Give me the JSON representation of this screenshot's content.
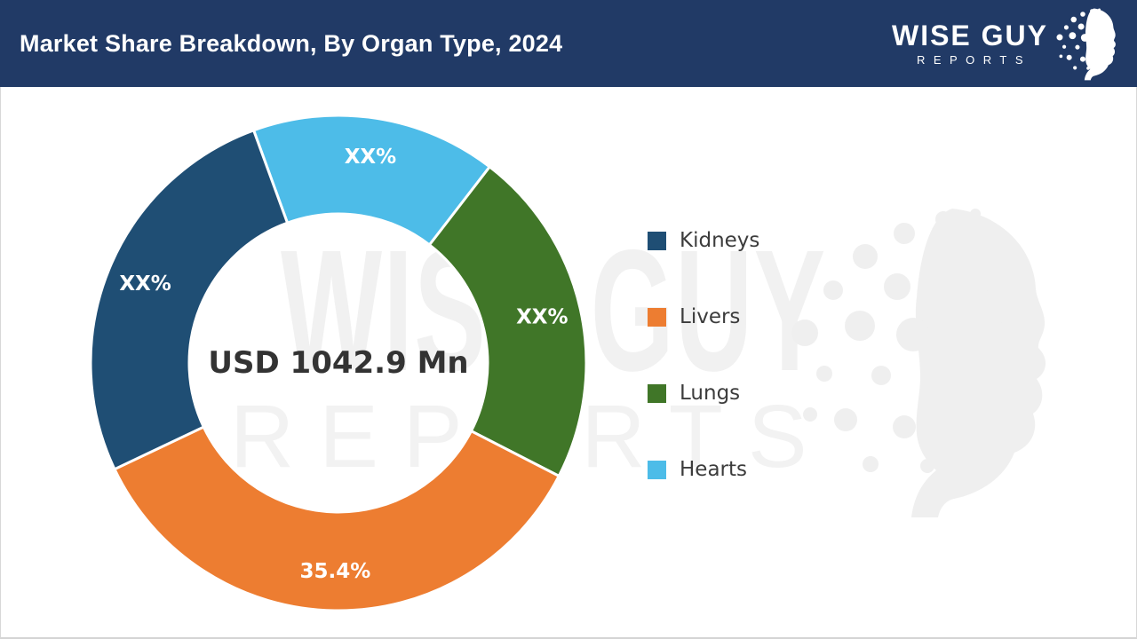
{
  "header": {
    "title": "Market Share Breakdown, By Organ Type, 2024",
    "bg_color": "#213a66",
    "logo": {
      "line1": "WISE GUY",
      "line2": "REPORTS"
    }
  },
  "chart_data": {
    "type": "pie",
    "subtype": "donut",
    "title": "Market Share Breakdown, By Organ Type, 2024",
    "center_label": "USD 1042.9 Mn",
    "unit": "percent",
    "categories": [
      "Kidneys",
      "Livers",
      "Lungs",
      "Hearts"
    ],
    "values": [
      26.5,
      35.4,
      22.1,
      16.0
    ],
    "slice_labels_by_category": [
      "XX%",
      "35.4%",
      "XX%",
      "XX%"
    ],
    "note": "only the Livers slice percentage (35.4%) is shown numerically; other slices are masked as XX%",
    "start_angle_deg": 110,
    "direction": "clockwise",
    "inner_radius_ratio": 0.6,
    "legend_position": "right",
    "segments_draw_order": [
      {
        "name": "Hearts",
        "value_pct": 16.0,
        "label": "XX%",
        "color": "#4dbce8"
      },
      {
        "name": "Lungs",
        "value_pct": 22.1,
        "label": "XX%",
        "color": "#407628"
      },
      {
        "name": "Livers",
        "value_pct": 35.4,
        "label": "35.4%",
        "color": "#ed7d31"
      },
      {
        "name": "Kidneys",
        "value_pct": 26.5,
        "label": "XX%",
        "color": "#1f4e74"
      }
    ],
    "slice_label_color": "#ffffff",
    "center_label_color": "#333333"
  },
  "legend": {
    "items": [
      {
        "label": "Kidneys",
        "color": "#1f4e74"
      },
      {
        "label": "Livers",
        "color": "#ed7d31"
      },
      {
        "label": "Lungs",
        "color": "#407628"
      },
      {
        "label": "Hearts",
        "color": "#4dbce8"
      }
    ]
  },
  "watermark": {
    "line1": "WISE GUY",
    "line2": "REPORTS"
  }
}
